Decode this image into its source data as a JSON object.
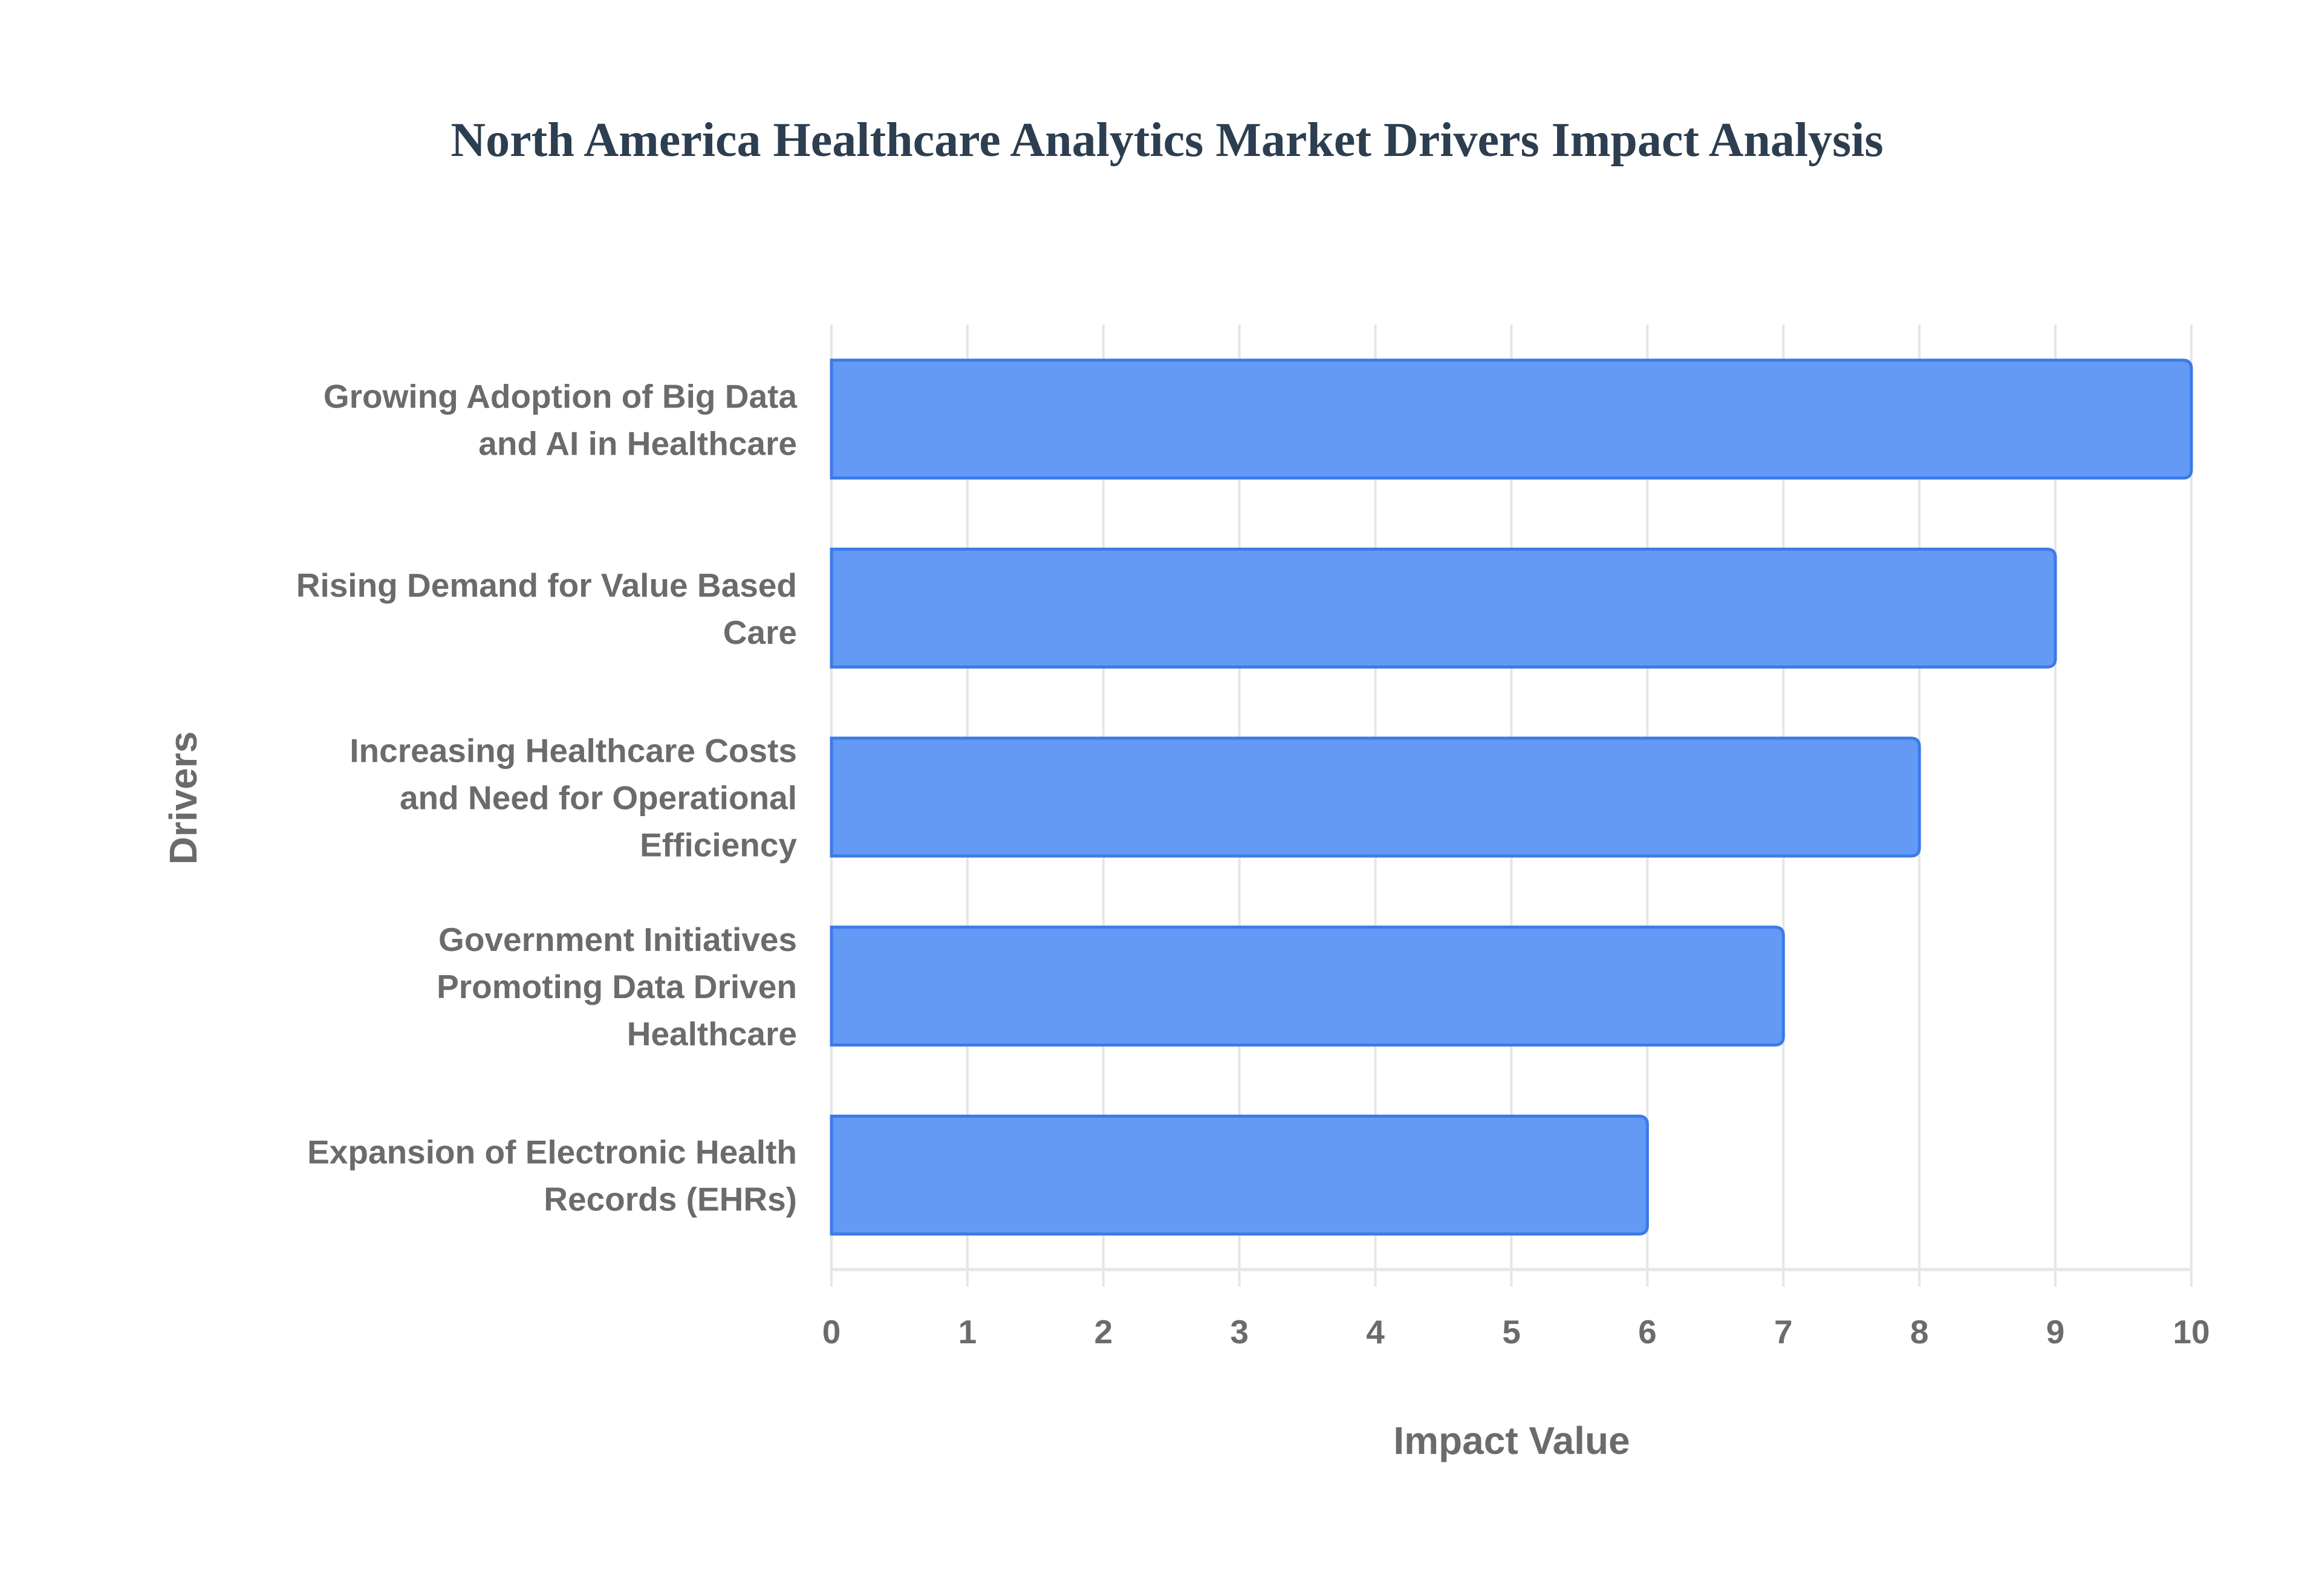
{
  "chart_data": {
    "type": "bar",
    "orientation": "horizontal",
    "title": "North America Healthcare Analytics Market Drivers Impact Analysis",
    "xlabel": "Impact Value",
    "ylabel": "Drivers",
    "categories": [
      [
        "Growing Adoption of Big Data",
        "and AI in Healthcare"
      ],
      [
        "Rising Demand for Value Based",
        "Care"
      ],
      [
        "Increasing Healthcare Costs",
        "and Need for Operational",
        "Efficiency"
      ],
      [
        "Government Initiatives",
        "Promoting Data Driven",
        "Healthcare"
      ],
      [
        "Expansion of Electronic Health",
        "Records (EHRs)"
      ]
    ],
    "values": [
      10,
      9,
      8,
      7,
      6
    ],
    "xlim": [
      0,
      10
    ],
    "xticks": [
      "0",
      "1",
      "2",
      "3",
      "4",
      "5",
      "6",
      "7",
      "8",
      "9",
      "10"
    ],
    "grid": true,
    "legend": "none",
    "colors": {
      "bar_fill": "#6499f5",
      "bar_border": "#3b7be8",
      "title": "#2c3e50",
      "text": "#6b6b6b",
      "grid": "#e6e6e6"
    }
  }
}
